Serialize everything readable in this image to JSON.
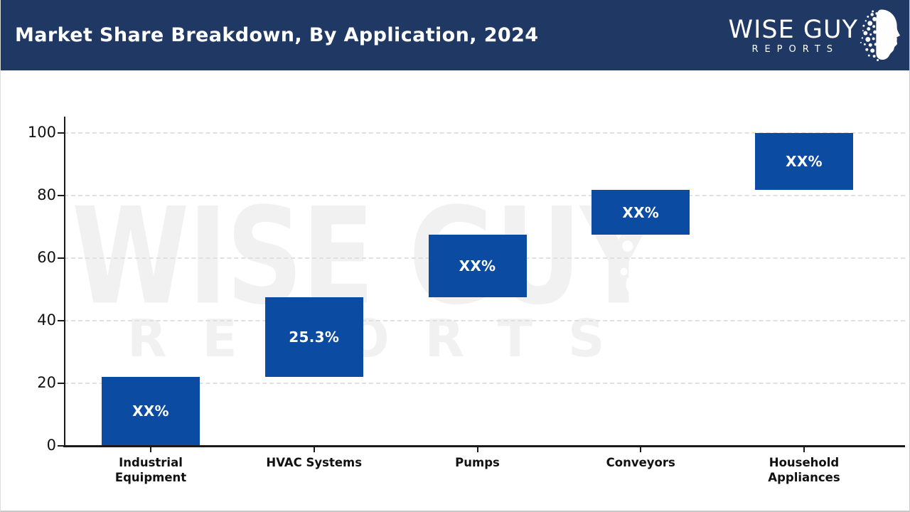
{
  "header": {
    "title": "Market Share Breakdown, By Application, 2024",
    "logo": {
      "line1": "WISE GUY",
      "line2": "REPORTS"
    }
  },
  "watermark": {
    "line1": "WISE GUY",
    "line2": "REPORTS"
  },
  "colors": {
    "header_bg": "#203864",
    "bar": "#0b4ba1",
    "bar_label": "#ffffff",
    "grid": "#e0e0e0",
    "axis": "#1a1a1a",
    "tick_label": "#111111",
    "watermark": "#f1f1f1",
    "title_text": "#ffffff"
  },
  "chart_data": {
    "type": "bar",
    "subtype": "waterfall",
    "title": "Market Share Breakdown, By Application, 2024",
    "xlabel": "",
    "ylabel": "",
    "ylim": [
      0,
      100
    ],
    "yticks": [
      0,
      20,
      40,
      60,
      80,
      100
    ],
    "grid": "horizontal-dashed",
    "legend": "none",
    "categories": [
      "Industrial Equipment",
      "HVAC Systems",
      "Pumps",
      "Conveyors",
      "Household Appliances"
    ],
    "category_lines": [
      [
        "Industrial",
        "Equipment"
      ],
      [
        "HVAC Systems"
      ],
      [
        "Pumps"
      ],
      [
        "Conveyors"
      ],
      [
        "Household",
        "Appliances"
      ]
    ],
    "segments": [
      {
        "category": "Industrial Equipment",
        "start": 0,
        "end": 22,
        "label": "XX%"
      },
      {
        "category": "HVAC Systems",
        "start": 22,
        "end": 47.3,
        "label": "25.3%"
      },
      {
        "category": "Pumps",
        "start": 47.3,
        "end": 67.3,
        "label": "XX%"
      },
      {
        "category": "Conveyors",
        "start": 67.3,
        "end": 81.6,
        "label": "XX%"
      },
      {
        "category": "Household Appliances",
        "start": 81.6,
        "end": 100,
        "label": "XX%"
      }
    ]
  }
}
